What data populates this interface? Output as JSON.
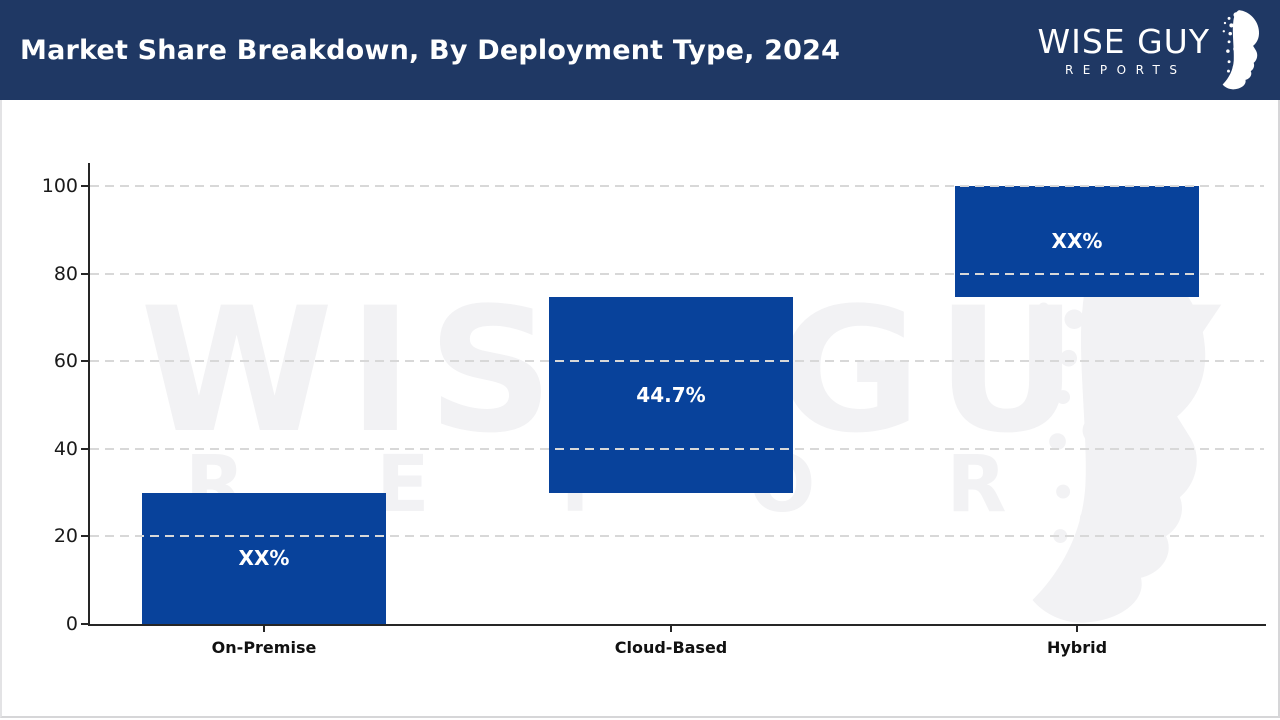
{
  "header": {
    "title": "Market Share Breakdown, By Deployment Type, 2024",
    "bg_color": "#1F3864",
    "logo": {
      "line1": "WISE GUY",
      "line2": "REPORTS"
    }
  },
  "watermark": {
    "line1": "WISE GUY",
    "line2": "R E P O R T S"
  },
  "chart_data": {
    "type": "bar",
    "variant": "floating-stacked-waterfall",
    "title": "Market Share Breakdown, By Deployment Type, 2024",
    "categories": [
      "On-Premise",
      "Cloud-Based",
      "Hybrid"
    ],
    "segments": [
      {
        "category": "On-Premise",
        "start": 0,
        "end": 30,
        "label": "XX%"
      },
      {
        "category": "Cloud-Based",
        "start": 30,
        "end": 74.7,
        "label": "44.7%"
      },
      {
        "category": "Hybrid",
        "start": 74.7,
        "end": 100,
        "label": "XX%"
      }
    ],
    "xlabel": "",
    "ylabel": "",
    "ylim": [
      0,
      105
    ],
    "y_ticks": [
      0,
      20,
      40,
      60,
      80,
      100
    ],
    "grid": "dashed-horizontal",
    "legend": "none",
    "bar_color": "#08429B",
    "value_label_color": "#FFFFFF"
  }
}
